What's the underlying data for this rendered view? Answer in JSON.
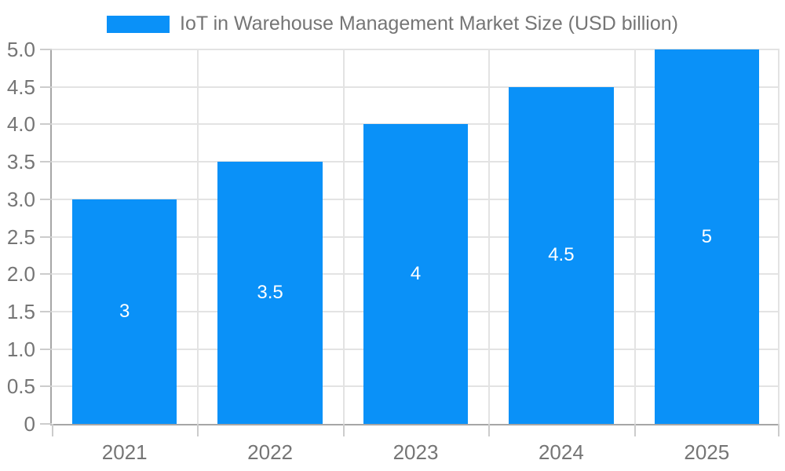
{
  "legend": {
    "label": "IoT in Warehouse Management Market Size (USD billion)"
  },
  "colors": {
    "bar": "#0a91f8",
    "bar_label": "#ffffff",
    "grid": "#e3e3e3",
    "tick": "#cccccc",
    "axis": "#a6a6a6",
    "text": "#757575",
    "background": "#ffffff"
  },
  "chart_data": {
    "type": "bar",
    "title": "IoT in Warehouse Management Market Size (USD billion)",
    "categories": [
      "2021",
      "2022",
      "2023",
      "2024",
      "2025"
    ],
    "values": [
      3,
      3.5,
      4,
      4.5,
      5
    ],
    "bar_labels": [
      "3",
      "3.5",
      "4",
      "4.5",
      "5"
    ],
    "bar_label_position": "center",
    "xlabel": "",
    "ylabel": "",
    "ylim": [
      0,
      5
    ],
    "ytick_step": 0.5,
    "yticks": [
      0,
      0.5,
      1,
      1.5,
      2,
      2.5,
      3,
      3.5,
      4,
      4.5,
      5
    ],
    "ytick_labels": [
      "0",
      "0.5",
      "1.0",
      "1.5",
      "2.0",
      "2.5",
      "3.0",
      "3.5",
      "4.0",
      "4.5",
      "5.0"
    ],
    "grid": true,
    "legend_position": "top",
    "bar_color": "#0a91f8",
    "bar_label_color": "#ffffff"
  }
}
